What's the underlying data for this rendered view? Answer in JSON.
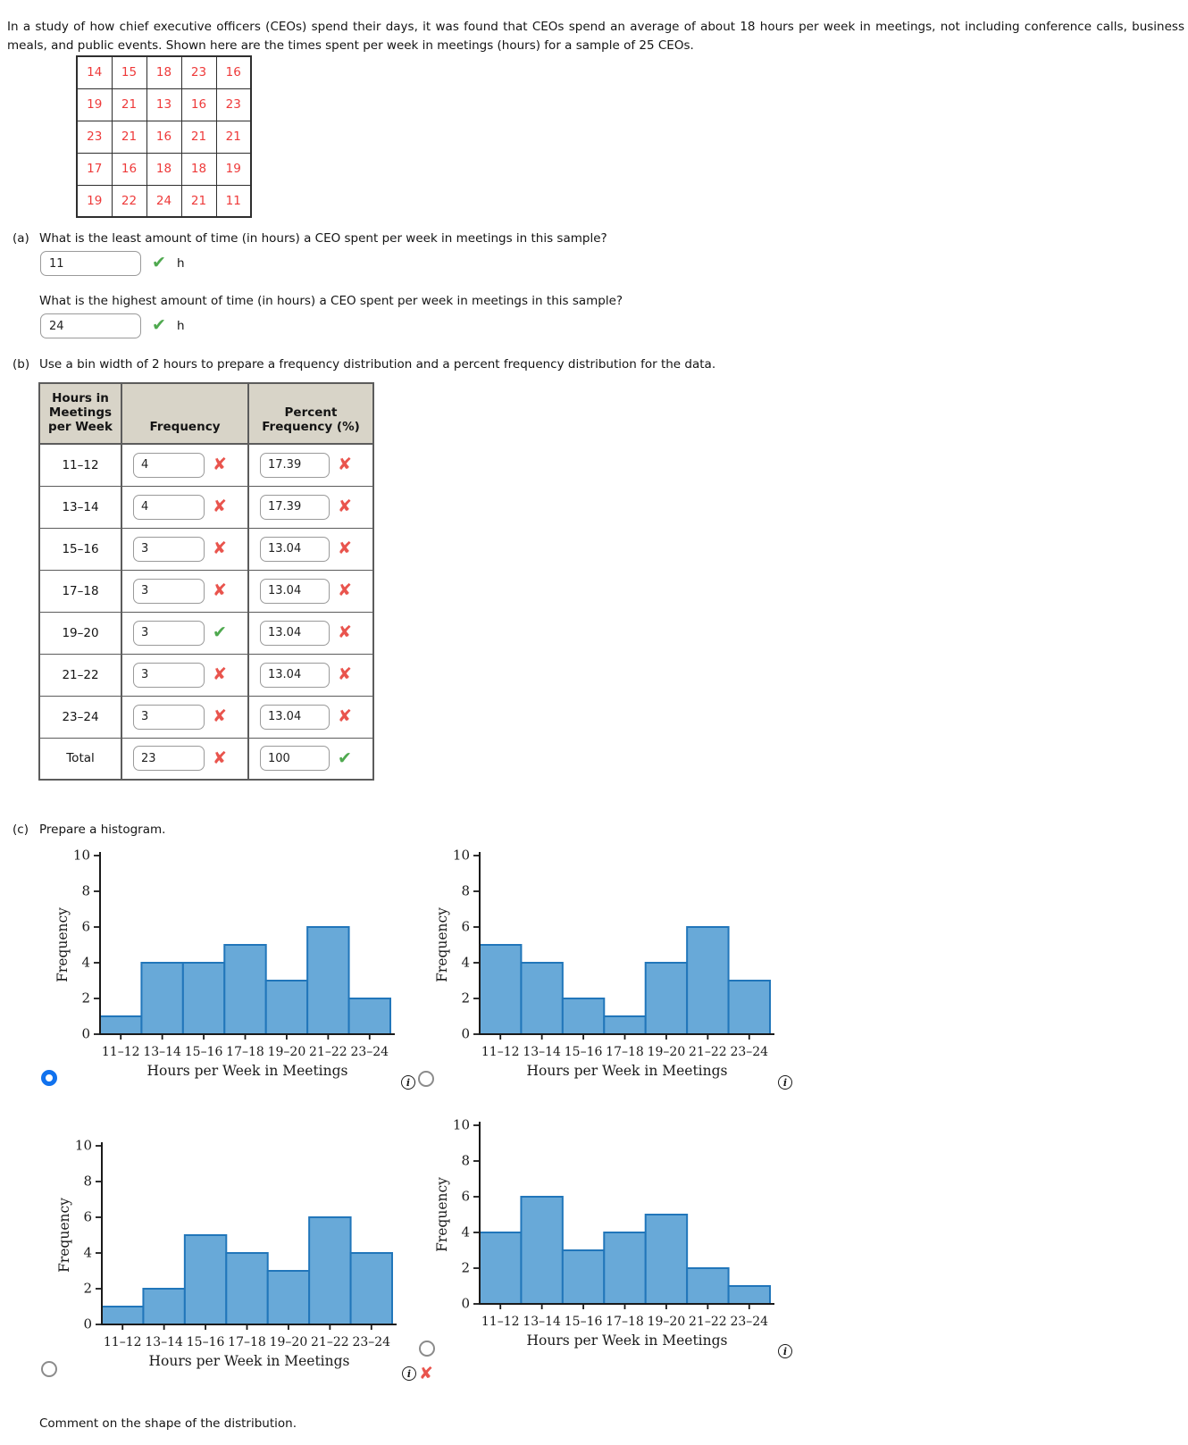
{
  "intro": "In a study of how chief executive officers (CEOs) spend their days, it was found that CEOs spend an average of about 18 hours per week in meetings, not including conference calls, business meals, and public events. Shown here are the times spent per week in meetings (hours) for a sample of 25 CEOs.",
  "data_table": {
    "rows": [
      [
        "14",
        "15",
        "18",
        "23",
        "16"
      ],
      [
        "19",
        "21",
        "13",
        "16",
        "23"
      ],
      [
        "23",
        "21",
        "16",
        "21",
        "21"
      ],
      [
        "17",
        "16",
        "18",
        "18",
        "19"
      ],
      [
        "19",
        "22",
        "24",
        "21",
        "11"
      ]
    ]
  },
  "part_a": {
    "label": "(a)",
    "q1": "What is the least amount of time (in hours) a CEO spent per week in meetings in this sample?",
    "a1": "11",
    "a1_mark": "check",
    "q2": "What is the highest amount of time (in hours) a CEO spent per week in meetings in this sample?",
    "a2": "24",
    "a2_mark": "check",
    "unit": "h"
  },
  "part_b": {
    "label": "(b)",
    "prompt": "Use a bin width of 2 hours to prepare a frequency distribution and a percent frequency distribution for the data.",
    "headers": [
      "Hours in Meetings per Week",
      "Frequency",
      "Percent Frequency (%)"
    ],
    "rows": [
      {
        "bin": "11–12",
        "freq": "4",
        "freq_mark": "cross",
        "pct": "17.39",
        "pct_mark": "cross"
      },
      {
        "bin": "13–14",
        "freq": "4",
        "freq_mark": "cross",
        "pct": "17.39",
        "pct_mark": "cross"
      },
      {
        "bin": "15–16",
        "freq": "3",
        "freq_mark": "cross",
        "pct": "13.04",
        "pct_mark": "cross"
      },
      {
        "bin": "17–18",
        "freq": "3",
        "freq_mark": "cross",
        "pct": "13.04",
        "pct_mark": "cross"
      },
      {
        "bin": "19–20",
        "freq": "3",
        "freq_mark": "check",
        "pct": "13.04",
        "pct_mark": "cross"
      },
      {
        "bin": "21–22",
        "freq": "3",
        "freq_mark": "cross",
        "pct": "13.04",
        "pct_mark": "cross"
      },
      {
        "bin": "23–24",
        "freq": "3",
        "freq_mark": "cross",
        "pct": "13.04",
        "pct_mark": "cross"
      },
      {
        "bin": "Total",
        "freq": "23",
        "freq_mark": "cross",
        "pct": "100",
        "pct_mark": "check"
      }
    ]
  },
  "part_c": {
    "label": "(c)",
    "prompt": "Prepare a histogram.",
    "comment": "Comment on the shape of the distribution."
  },
  "chart_data": [
    {
      "option": 1,
      "type": "bar",
      "categories": [
        "11–12",
        "13–14",
        "15–16",
        "17–18",
        "19–20",
        "21–22",
        "23–24"
      ],
      "values": [
        1,
        4,
        4,
        5,
        3,
        6,
        2
      ],
      "title": "",
      "xlabel": "Hours per Week in Meetings",
      "ylabel": "Frequency",
      "ylim": [
        0,
        10
      ],
      "yticks": [
        0,
        2,
        4,
        6,
        8,
        10
      ],
      "grid": false,
      "legend": "none",
      "radio_selected": true,
      "grade_mark": ""
    },
    {
      "option": 2,
      "type": "bar",
      "categories": [
        "11–12",
        "13–14",
        "15–16",
        "17–18",
        "19–20",
        "21–22",
        "23–24"
      ],
      "values": [
        5,
        4,
        2,
        1,
        4,
        6,
        3
      ],
      "title": "",
      "xlabel": "Hours per Week in Meetings",
      "ylabel": "Frequency",
      "ylim": [
        0,
        10
      ],
      "yticks": [
        0,
        2,
        4,
        6,
        8,
        10
      ],
      "grid": false,
      "legend": "none",
      "radio_selected": false,
      "grade_mark": ""
    },
    {
      "option": 3,
      "type": "bar",
      "categories": [
        "11–12",
        "13–14",
        "15–16",
        "17–18",
        "19–20",
        "21–22",
        "23–24"
      ],
      "values": [
        1,
        2,
        5,
        4,
        3,
        6,
        4
      ],
      "title": "",
      "xlabel": "Hours per Week in Meetings",
      "ylabel": "Frequency",
      "ylim": [
        0,
        10
      ],
      "yticks": [
        0,
        2,
        4,
        6,
        8,
        10
      ],
      "grid": false,
      "legend": "none",
      "radio_selected": false,
      "grade_mark": "cross"
    },
    {
      "option": 4,
      "type": "bar",
      "categories": [
        "11–12",
        "13–14",
        "15–16",
        "17–18",
        "19–20",
        "21–22",
        "23–24"
      ],
      "values": [
        4,
        6,
        3,
        4,
        5,
        2,
        1
      ],
      "title": "",
      "xlabel": "Hours per Week in Meetings",
      "ylabel": "Frequency",
      "ylim": [
        0,
        10
      ],
      "yticks": [
        0,
        2,
        4,
        6,
        8,
        10
      ],
      "grid": false,
      "legend": "none",
      "radio_selected": false,
      "grade_mark": ""
    }
  ],
  "icons": {
    "check": "✔",
    "cross": "✘",
    "info": "i"
  },
  "colors": {
    "bar_fill": "#68a9d8",
    "bar_edge": "#2176ba",
    "axis": "#1a1a1a",
    "check": "#4fa94f",
    "cross": "#e9544d",
    "data_red": "#ee3a3a",
    "radio_selected": "#1172ee",
    "header_bg": "#d8d4c8"
  }
}
